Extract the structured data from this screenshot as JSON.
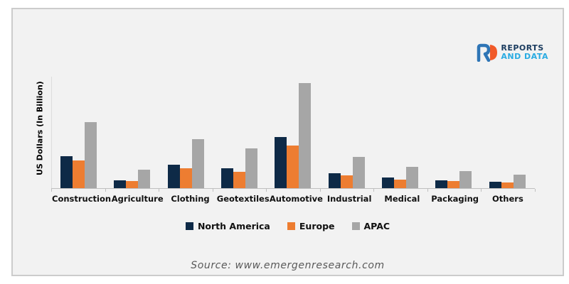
{
  "frame": {
    "background": "#f2f2f2",
    "border_color": "#cccccc"
  },
  "logo": {
    "line1": "REPORTS",
    "line2": "AND DATA",
    "line1_color": "#1b3c5f",
    "line2_color": "#29abe2",
    "mark_blue": "#2e75b6",
    "mark_orange": "#f15a29"
  },
  "source_note": "Source: www.emergenresearch.com",
  "chart_data": {
    "type": "bar",
    "title": "",
    "xlabel": "",
    "ylabel": "US Dollars (In Billion)",
    "categories": [
      "Construction",
      "Agriculture",
      "Clothing",
      "Geotextiles",
      "Automotive",
      "Industrial",
      "Medical",
      "Packaging",
      "Others"
    ],
    "series": [
      {
        "name": "North America",
        "color": "#0e2a47",
        "values": [
          45,
          11,
          33,
          28,
          72,
          21,
          15,
          11,
          9
        ]
      },
      {
        "name": "Europe",
        "color": "#ed7d31",
        "values": [
          39,
          10,
          28,
          23,
          60,
          18,
          12,
          10,
          8
        ]
      },
      {
        "name": "APAC",
        "color": "#a6a6a6",
        "values": [
          93,
          26,
          69,
          56,
          148,
          44,
          30,
          24,
          19
        ]
      }
    ],
    "ylim": [
      0,
      155
    ],
    "grid": false,
    "axis_color": "#bfbfbf",
    "legend_position": "bottom",
    "y_tick_labels_shown": false
  }
}
